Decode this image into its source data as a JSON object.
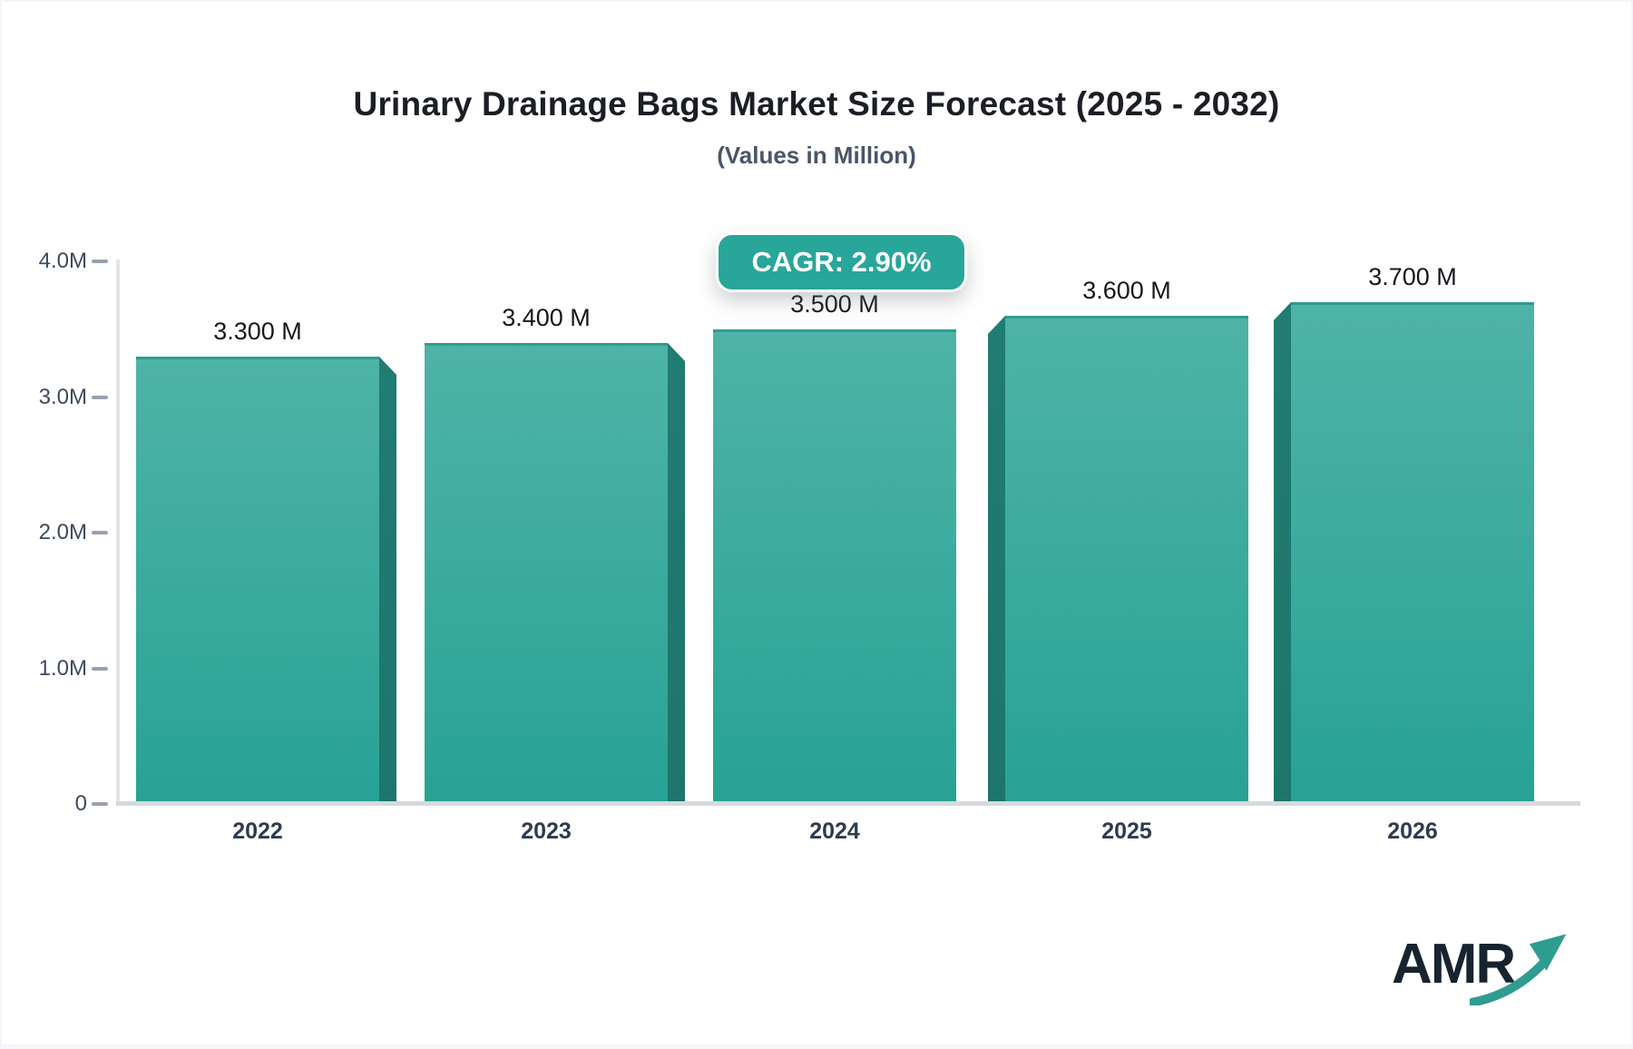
{
  "header": {
    "title": "Urinary Drainage Bags Market Size Forecast (2025 - 2032)",
    "subtitle": "(Values in Million)"
  },
  "badge": {
    "label": "CAGR: 2.90%"
  },
  "chart_data": {
    "type": "bar",
    "title": "Urinary Drainage Bags Market Size Forecast (2025 - 2032)",
    "subtitle": "(Values in Million)",
    "categories": [
      "2022",
      "2023",
      "2024",
      "2025",
      "2026"
    ],
    "values": [
      3.3,
      3.4,
      3.5,
      3.6,
      3.7
    ],
    "bar_labels": [
      "3.300 M",
      "3.400 M",
      "3.500 M",
      "3.600 M",
      "3.700 M"
    ],
    "unit": "Million",
    "ylim": [
      0,
      4
    ],
    "yticks": [
      {
        "value": 4,
        "label": "4.0M"
      },
      {
        "value": 3,
        "label": "3.0M"
      },
      {
        "value": 2,
        "label": "2.0M"
      },
      {
        "value": 1,
        "label": "1.0M"
      },
      {
        "value": 0,
        "label": "0"
      }
    ],
    "annotation": "CAGR: 2.90%",
    "grid": false,
    "legend": false,
    "colors": {
      "bar_top": "#4fb3a7",
      "bar_bottom": "#28a296",
      "bar_side": "#217c72",
      "accent": "#28a69a"
    }
  },
  "logo": {
    "text": "AMR",
    "arrow_icon": "trend-up-arrow",
    "text_color": "#172430",
    "arrow_color": "#2f9c90"
  }
}
